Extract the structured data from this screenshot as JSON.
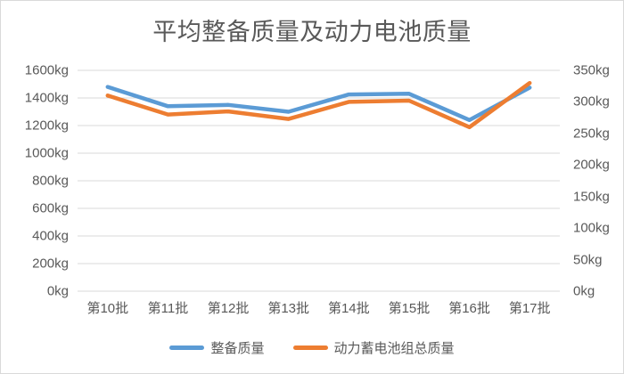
{
  "title": "平均整备质量及动力电池质量",
  "colors": {
    "series1": "#5B9BD5",
    "series2": "#ED7D31",
    "gridline": "#D9D9D9",
    "text": "#595959",
    "border": "#D9D9D9",
    "background": "#FFFFFF"
  },
  "chart_data": {
    "type": "line",
    "title": "平均整备质量及动力电池质量",
    "categories": [
      "第10批",
      "第11批",
      "第12批",
      "第13批",
      "第14批",
      "第15批",
      "第16批",
      "第17批"
    ],
    "series": [
      {
        "name": "整备质量",
        "axis": "left",
        "color": "#5B9BD5",
        "values": [
          1480,
          1340,
          1350,
          1300,
          1425,
          1430,
          1240,
          1475
        ]
      },
      {
        "name": "动力蓄电池组总质量",
        "axis": "right",
        "color": "#ED7D31",
        "values": [
          310,
          280,
          285,
          273,
          300,
          302,
          260,
          330
        ]
      }
    ],
    "left_axis": {
      "min": 0,
      "max": 1600,
      "step": 200,
      "unit": "kg",
      "tick_labels": [
        "0kg",
        "200kg",
        "400kg",
        "600kg",
        "800kg",
        "1000kg",
        "1200kg",
        "1400kg",
        "1600kg"
      ]
    },
    "right_axis": {
      "min": 0,
      "max": 350,
      "step": 50,
      "unit": "kg",
      "tick_labels": [
        "0kg",
        "50kg",
        "100kg",
        "150kg",
        "200kg",
        "250kg",
        "300kg",
        "350kg"
      ]
    },
    "grid": "horizontal",
    "legend_position": "bottom"
  },
  "legend": {
    "items": [
      {
        "label": "整备质量",
        "color": "#5B9BD5"
      },
      {
        "label": "动力蓄电池组总质量",
        "color": "#ED7D31"
      }
    ]
  }
}
